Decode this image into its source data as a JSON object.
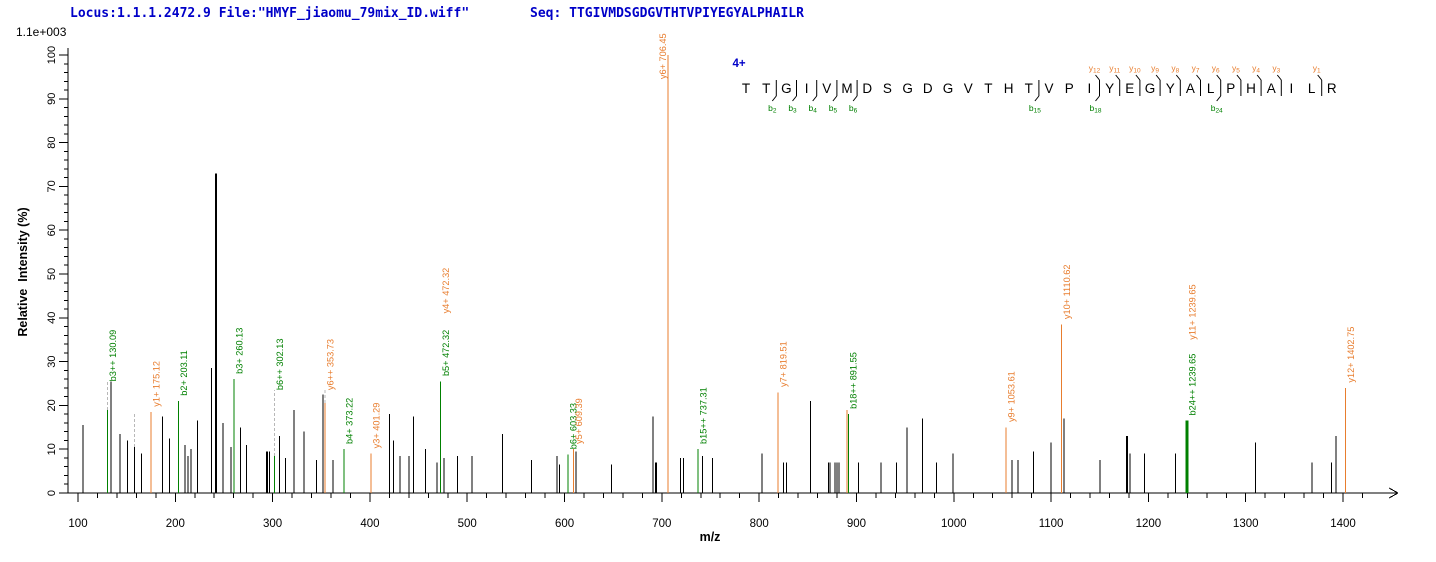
{
  "header": {
    "locus_file": "Locus:1.1.1.2472.9 File:\"HMYF_jiaomu_79mix_ID.wiff\"",
    "sequence_label": "Seq: TTGIVMDSGDGVTHTVPIYEGYALPHAILR",
    "base_peak_intensity": "1.1e+003"
  },
  "colors": {
    "b_ion": "#008000",
    "y_ion": "#e87d2e",
    "unmatched": "#000000",
    "header_text": "#0000c8",
    "leader": "#b8b8b8",
    "axis": "#000000"
  },
  "chart_data": {
    "type": "bar",
    "subtype": "ms2-centroid-stick-spectrum",
    "title": "",
    "xlabel": "m/z",
    "ylabel": "Relative  Intensity (%)",
    "xlim": [
      100,
      1400
    ],
    "ylim": [
      0,
      100
    ],
    "x_major_tick": 100,
    "x_minor_tick": 20,
    "y_major_tick": 10,
    "y_minor_tick": 2,
    "legend": "none",
    "grid": false,
    "precursor_charge": "4+",
    "sequence": "TTGIVMDSGDGVTHTVPIYEGYALPHAILR",
    "fragment_cuts": {
      "y": [
        {
          "name": "y12",
          "after": 18
        },
        {
          "name": "y11",
          "after": 19
        },
        {
          "name": "y10",
          "after": 20
        },
        {
          "name": "y9",
          "after": 21
        },
        {
          "name": "y8",
          "after": 22
        },
        {
          "name": "y7",
          "after": 23
        },
        {
          "name": "y6",
          "after": 24
        },
        {
          "name": "y5",
          "after": 25
        },
        {
          "name": "y4",
          "after": 26
        },
        {
          "name": "y3",
          "after": 27
        },
        {
          "name": "y1",
          "after": 29
        }
      ],
      "b": [
        {
          "name": "b2",
          "after": 2
        },
        {
          "name": "b3",
          "after": 3
        },
        {
          "name": "b4",
          "after": 4
        },
        {
          "name": "b5",
          "after": 5
        },
        {
          "name": "b6",
          "after": 6
        },
        {
          "name": "b15",
          "after": 15
        },
        {
          "name": "b18",
          "after": 18
        },
        {
          "name": "b24",
          "after": 24
        }
      ]
    },
    "stacked_labels": [
      {
        "mz": 472.32,
        "text": "y4+ 472.32",
        "ion": "y",
        "anchor": 41
      },
      {
        "mz": 1239.65,
        "text": "y11+ 1239.65",
        "ion": "y",
        "anchor": 35
      }
    ],
    "peaks": [
      {
        "mz": 105,
        "i": 15.5
      },
      {
        "mz": 130.09,
        "i": 19,
        "ion": "b",
        "label": "b3++ 130.09",
        "anchor": 25.5
      },
      {
        "mz": 134,
        "i": 25.5
      },
      {
        "mz": 143,
        "i": 13.5
      },
      {
        "mz": 151,
        "i": 12
      },
      {
        "mz": 158,
        "i": 10.5,
        "leader": 18.5
      },
      {
        "mz": 165,
        "i": 9
      },
      {
        "mz": 175.12,
        "i": 18.5,
        "ion": "y",
        "label": "y1+ 175.12"
      },
      {
        "mz": 187,
        "i": 17.5
      },
      {
        "mz": 194,
        "i": 12.5
      },
      {
        "mz": 203.11,
        "i": 21,
        "ion": "b",
        "label": "b2+ 203.11"
      },
      {
        "mz": 210,
        "i": 11
      },
      {
        "mz": 213,
        "i": 8.5
      },
      {
        "mz": 216,
        "i": 10
      },
      {
        "mz": 223,
        "i": 16.5
      },
      {
        "mz": 237,
        "i": 28.5
      },
      {
        "mz": 242,
        "i": 73,
        "w": 2
      },
      {
        "mz": 249,
        "i": 16
      },
      {
        "mz": 257,
        "i": 10.5
      },
      {
        "mz": 260.13,
        "i": 26,
        "ion": "b",
        "label": "b3+ 260.13"
      },
      {
        "mz": 267,
        "i": 15
      },
      {
        "mz": 273,
        "i": 11
      },
      {
        "mz": 294,
        "i": 9.5,
        "w": 2
      },
      {
        "mz": 297,
        "i": 9.5
      },
      {
        "mz": 302.13,
        "i": 8.5,
        "ion": "b",
        "label": "b6++ 302.13",
        "anchor": 23.5
      },
      {
        "mz": 307,
        "i": 13
      },
      {
        "mz": 313,
        "i": 8
      },
      {
        "mz": 322,
        "i": 19
      },
      {
        "mz": 332,
        "i": 14
      },
      {
        "mz": 345,
        "i": 7.5
      },
      {
        "mz": 352,
        "i": 22.5
      },
      {
        "mz": 353.73,
        "i": 20.5,
        "ion": "y",
        "label": "y6++ 353.73",
        "anchor": 23.5
      },
      {
        "mz": 362,
        "i": 7.5
      },
      {
        "mz": 373.22,
        "i": 10,
        "ion": "b",
        "label": "b4+ 373.22"
      },
      {
        "mz": 401.29,
        "i": 9,
        "ion": "y",
        "label": "y3+ 401.29"
      },
      {
        "mz": 420,
        "i": 18
      },
      {
        "mz": 424,
        "i": 12
      },
      {
        "mz": 431,
        "i": 8.5
      },
      {
        "mz": 440,
        "i": 8.5
      },
      {
        "mz": 445,
        "i": 17.5
      },
      {
        "mz": 457,
        "i": 10
      },
      {
        "mz": 469,
        "i": 7
      },
      {
        "mz": 472.32,
        "i": 25.5,
        "ion": "b",
        "label": "b5+ 472.32"
      },
      {
        "mz": 476,
        "i": 8
      },
      {
        "mz": 490,
        "i": 8.5
      },
      {
        "mz": 505,
        "i": 8.5
      },
      {
        "mz": 536,
        "i": 13.5
      },
      {
        "mz": 566,
        "i": 7.5
      },
      {
        "mz": 592,
        "i": 8.5
      },
      {
        "mz": 595,
        "i": 6.5
      },
      {
        "mz": 603.33,
        "i": 8.8,
        "ion": "b",
        "label": "b6+ 603.33"
      },
      {
        "mz": 609.39,
        "i": 10,
        "ion": "y",
        "label": "y5+ 609.39"
      },
      {
        "mz": 612,
        "i": 9.5
      },
      {
        "mz": 648,
        "i": 6.5
      },
      {
        "mz": 691,
        "i": 17.5
      },
      {
        "mz": 694,
        "i": 7,
        "w": 2
      },
      {
        "mz": 706.45,
        "i": 100,
        "ion": "y",
        "label": "y6+ 706.45",
        "anchor": 94.5,
        "side": "left"
      },
      {
        "mz": 719,
        "i": 8
      },
      {
        "mz": 722,
        "i": 8
      },
      {
        "mz": 737.31,
        "i": 10,
        "ion": "b",
        "label": "b15++ 737.31"
      },
      {
        "mz": 742,
        "i": 8.5
      },
      {
        "mz": 752,
        "i": 8
      },
      {
        "mz": 803,
        "i": 9
      },
      {
        "mz": 819.51,
        "i": 23,
        "ion": "y",
        "label": "y7+ 819.51"
      },
      {
        "mz": 825,
        "i": 7
      },
      {
        "mz": 828,
        "i": 7
      },
      {
        "mz": 853,
        "i": 21
      },
      {
        "mz": 871,
        "i": 7
      },
      {
        "mz": 873,
        "i": 7
      },
      {
        "mz": 878,
        "i": 7
      },
      {
        "mz": 880,
        "i": 7
      },
      {
        "mz": 882,
        "i": 7
      },
      {
        "mz": 890.5,
        "i": 19,
        "ion": "y"
      },
      {
        "mz": 891.55,
        "i": 18,
        "ion": "b",
        "label": "b18++ 891.55"
      },
      {
        "mz": 902,
        "i": 7
      },
      {
        "mz": 925,
        "i": 7
      },
      {
        "mz": 941,
        "i": 7
      },
      {
        "mz": 952,
        "i": 15
      },
      {
        "mz": 968,
        "i": 17
      },
      {
        "mz": 982,
        "i": 7
      },
      {
        "mz": 999,
        "i": 9
      },
      {
        "mz": 1053.61,
        "i": 15,
        "ion": "y",
        "label": "y9+ 1053.61"
      },
      {
        "mz": 1060,
        "i": 7.5
      },
      {
        "mz": 1066,
        "i": 7.5
      },
      {
        "mz": 1082,
        "i": 9.5
      },
      {
        "mz": 1100,
        "i": 11.5
      },
      {
        "mz": 1110.62,
        "i": 38.5,
        "ion": "y",
        "label": "y10+ 1110.62"
      },
      {
        "mz": 1113,
        "i": 17
      },
      {
        "mz": 1150,
        "i": 7.5
      },
      {
        "mz": 1178,
        "i": 13,
        "w": 2
      },
      {
        "mz": 1181,
        "i": 9
      },
      {
        "mz": 1196,
        "i": 9
      },
      {
        "mz": 1228,
        "i": 9
      },
      {
        "mz": 1239.65,
        "i": 16.5,
        "ion": "b",
        "w": 3,
        "label": "b24++ 1239.65"
      },
      {
        "mz": 1310,
        "i": 11.5
      },
      {
        "mz": 1368,
        "i": 7
      },
      {
        "mz": 1388,
        "i": 7
      },
      {
        "mz": 1393,
        "i": 13
      },
      {
        "mz": 1402.75,
        "i": 24,
        "ion": "y",
        "label": "y12+ 1402.75"
      }
    ]
  }
}
